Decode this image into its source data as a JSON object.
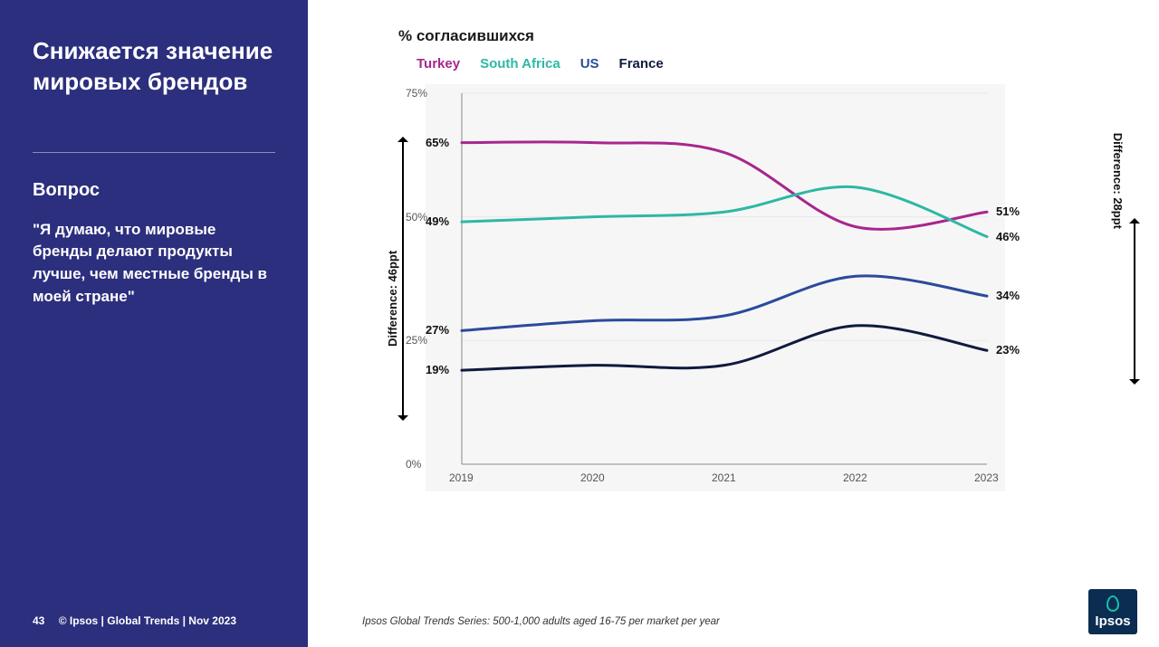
{
  "colors": {
    "sidebar_bg": "#2c2f7d",
    "page_bg": "#ffffff",
    "plot_bg": "#f6f6f6",
    "axis_text": "#555555",
    "logo_bg": "#0b2d52",
    "logo_accent": "#17c0a6"
  },
  "sidebar": {
    "title": "Снижается значение мировых брендов",
    "question_label": "Вопрос",
    "question_text": "\"Я думаю, что мировые бренды делают продукты лучше, чем местные бренды в моей стране\"",
    "page_number": "43",
    "copyright": "© Ipsos | Global Trends | Nov 2023"
  },
  "chart": {
    "type": "line",
    "title": "% согласившихся",
    "x_categories": [
      "2019",
      "2020",
      "2021",
      "2022",
      "2023"
    ],
    "ylim": [
      0,
      75
    ],
    "ytick_step": 25,
    "ytick_labels": [
      "0%",
      "25%",
      "50%",
      "75%"
    ],
    "grid_color": "#e8e8e8",
    "line_width": 3,
    "series": [
      {
        "name": "Turkey",
        "color": "#a8268e",
        "values": [
          65,
          65,
          63,
          48,
          51
        ],
        "start_label": "65%",
        "end_label": "51%"
      },
      {
        "name": "South Africa",
        "color": "#2db8a4",
        "values": [
          49,
          50,
          51,
          56,
          46
        ],
        "start_label": "49%",
        "end_label": "46%"
      },
      {
        "name": "US",
        "color": "#2a4a9c",
        "values": [
          27,
          29,
          30,
          38,
          34
        ],
        "start_label": "27%",
        "end_label": "34%"
      },
      {
        "name": "France",
        "color": "#0f1a3e",
        "values": [
          19,
          20,
          20,
          28,
          23
        ],
        "start_label": "19%",
        "end_label": "23%"
      }
    ],
    "diff_left_label": "Difference: 46ppt",
    "diff_right_label": "Difference: 28ppt"
  },
  "footnote": "Ipsos Global Trends Series: 500-1,000 adults aged 16-75 per market per year",
  "logo_text": "Ipsos"
}
